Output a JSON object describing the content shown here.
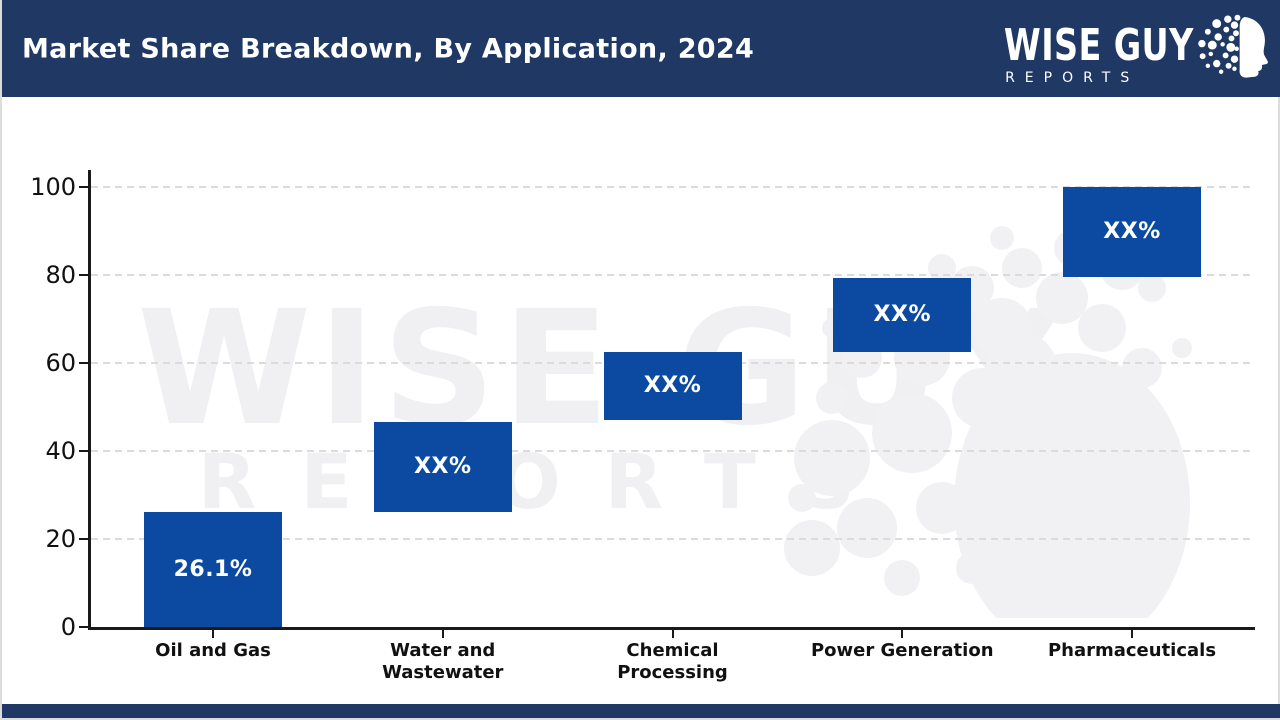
{
  "header": {
    "title": "Market Share Breakdown, By Application, 2024",
    "logo": {
      "line1": "WISE GUY",
      "line2": "REPORTS"
    }
  },
  "watermark": {
    "line1": "WISE GUY",
    "line2": "REPORTS"
  },
  "colors": {
    "navy": "#1F3864",
    "bar_blue": "#0B4AA0",
    "bar_label": "#FFFFFF",
    "gridline": "#DBDBDB",
    "axis": "#1A1A1A",
    "watermark": "#F0F0F3"
  },
  "chart_data": {
    "type": "bar",
    "subtype": "floating-waterfall-segments",
    "title": "Market Share Breakdown, By Application, 2024",
    "categories": [
      "Oil and Gas",
      "Water and\nWastewater",
      "Chemical\nProcessing",
      "Power Generation",
      "Pharmaceuticals"
    ],
    "bars": [
      {
        "category": "Oil and Gas",
        "start": 0,
        "end": 26.1,
        "label": "26.1%"
      },
      {
        "category": "Water and Wastewater",
        "start": 26.1,
        "end": 46.7,
        "label": "XX%"
      },
      {
        "category": "Chemical Processing",
        "start": 47.0,
        "end": 62.6,
        "label": "XX%"
      },
      {
        "category": "Power Generation",
        "start": 62.6,
        "end": 79.4,
        "label": "XX%"
      },
      {
        "category": "Pharmaceuticals",
        "start": 79.6,
        "end": 100,
        "label": "XX%"
      }
    ],
    "yticks": [
      0,
      20,
      40,
      60,
      80,
      100
    ],
    "ylim": [
      0,
      100
    ],
    "xlabel": "",
    "ylabel": "",
    "grid": "horizontal-dashed",
    "legend": "none"
  }
}
